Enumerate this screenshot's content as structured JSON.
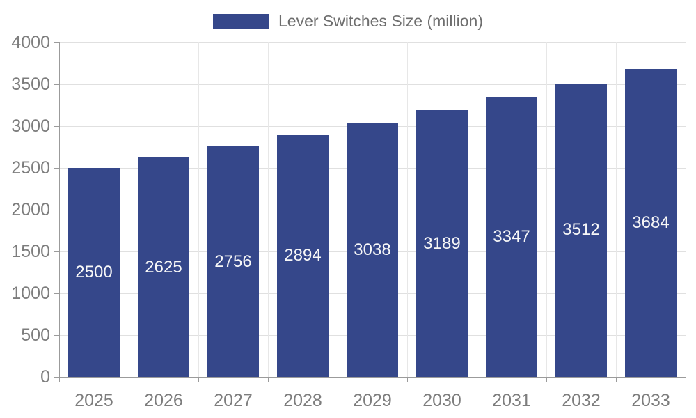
{
  "chart_data": {
    "type": "bar",
    "title": "",
    "legend": [
      "Lever Switches Size (million)"
    ],
    "legend_position": "top-center",
    "categories": [
      "2025",
      "2026",
      "2027",
      "2028",
      "2029",
      "2030",
      "2031",
      "2032",
      "2033"
    ],
    "series": [
      {
        "name": "Lever Switches Size (million)",
        "values": [
          2500,
          2625,
          2756,
          2894,
          3038,
          3189,
          3347,
          3512,
          3684
        ]
      }
    ],
    "xlabel": "",
    "ylabel": "",
    "ylim": [
      0,
      4000
    ],
    "ytick_step": 500,
    "yticks": [
      0,
      500,
      1000,
      1500,
      2000,
      2500,
      3000,
      3500,
      4000
    ],
    "grid": true,
    "bar_labels_shown": true,
    "bar_label_placement": "inside-middle"
  },
  "style": {
    "bar_color": "#35478A",
    "grid_color_h": "#e0e0e0",
    "grid_color_v": "#e7e7e7",
    "axis_color": "#9b9b9b",
    "tick_label_color": "#7d7d7d",
    "legend_text_color": "#6e6e6e",
    "value_label_color": "#f7f7f7",
    "background_color": "#ffffff"
  }
}
